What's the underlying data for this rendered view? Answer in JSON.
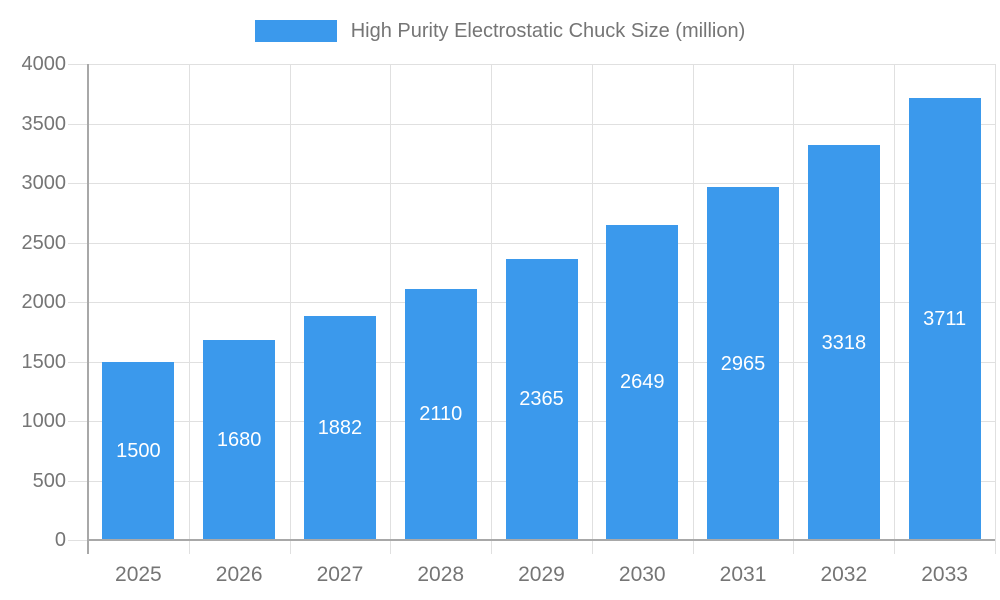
{
  "legend": {
    "label": "High Purity Electrostatic Chuck Size (million)"
  },
  "chart_data": {
    "type": "bar",
    "title": "High Purity Electrostatic Chuck Size (million)",
    "series_name": "High Purity Electrostatic Chuck Size (million)",
    "categories": [
      "2025",
      "2026",
      "2027",
      "2028",
      "2029",
      "2030",
      "2031",
      "2032",
      "2033"
    ],
    "values": [
      1500,
      1680,
      1882,
      2110,
      2365,
      2649,
      2965,
      3318,
      3711
    ],
    "value_labels": [
      "1500",
      "1680",
      "1882",
      "2110",
      "2365",
      "2649",
      "2965",
      "3318",
      "3711"
    ],
    "xlabel": "",
    "ylabel": "",
    "ylim": [
      0,
      4000
    ],
    "ytick_step": 500,
    "yticks": [
      "0",
      "500",
      "1000",
      "1500",
      "2000",
      "2500",
      "3000",
      "3500",
      "4000"
    ],
    "grid": true,
    "legend_position": "top",
    "bar_color": "#3B99EC",
    "value_label_color": "#ffffff",
    "grid_color": "#e0e0e0",
    "axis_color": "#a8a8a8",
    "tick_label_color": "#757575"
  }
}
